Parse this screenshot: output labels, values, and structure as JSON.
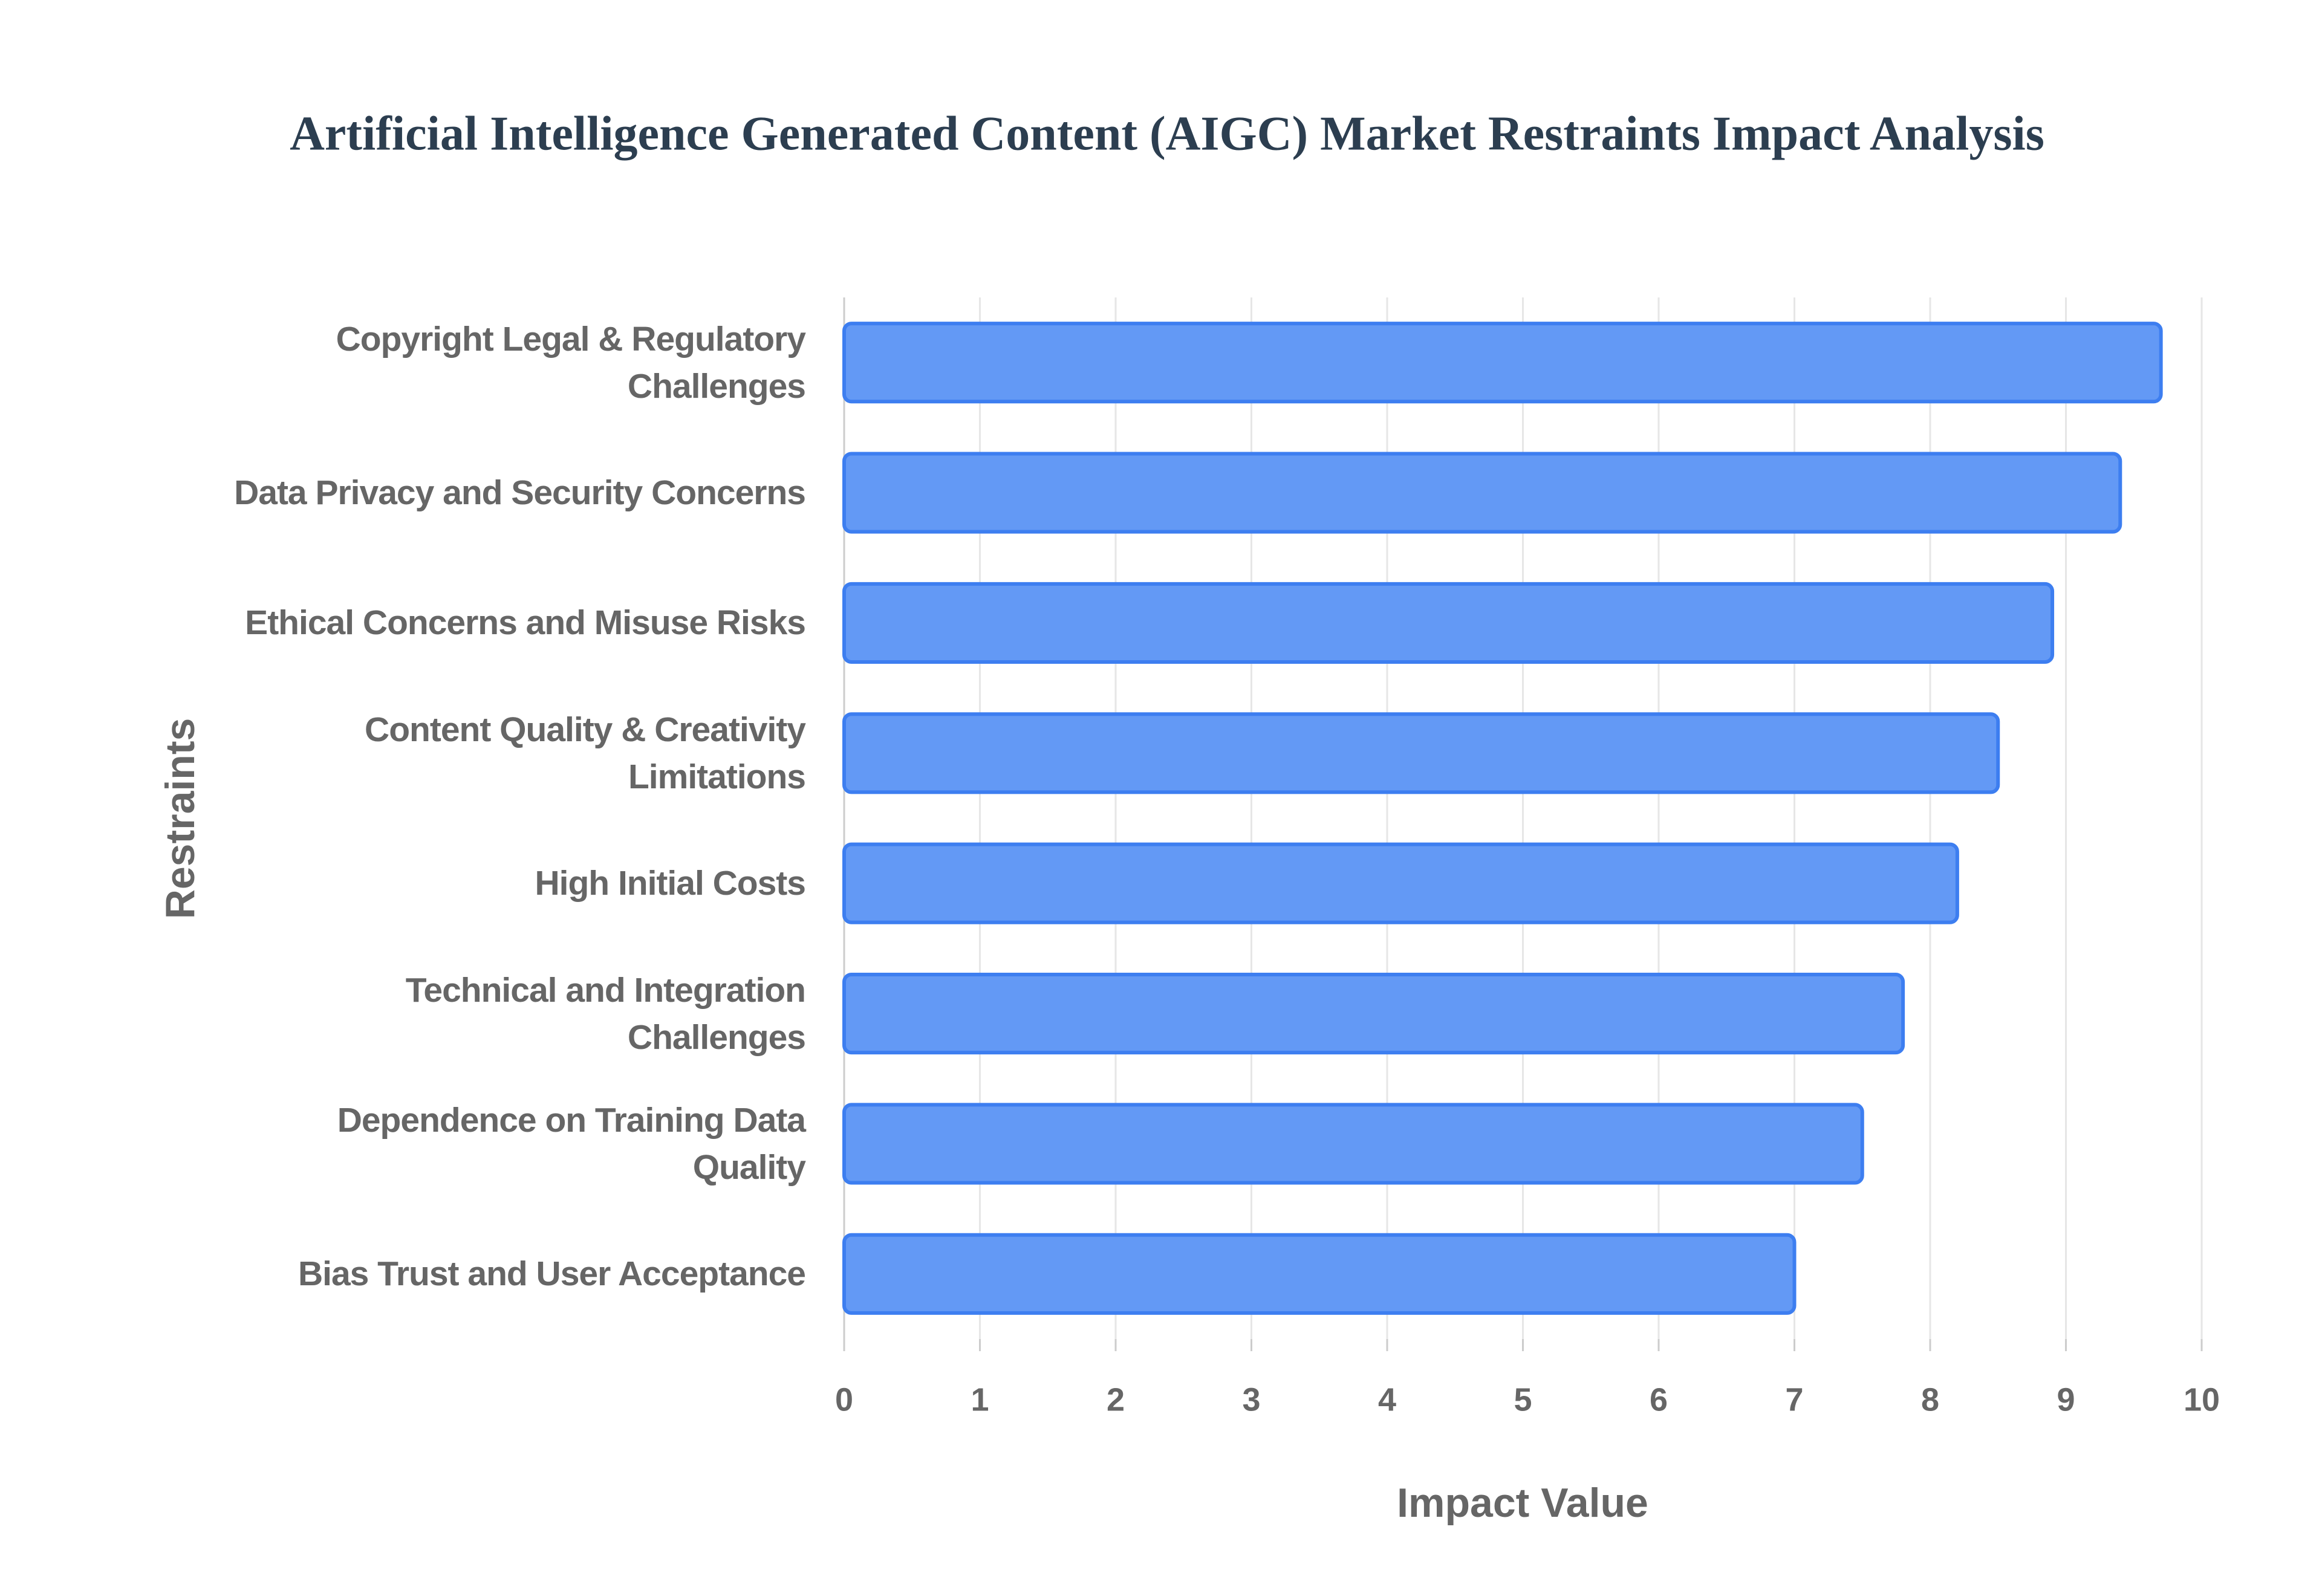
{
  "chart_data": {
    "type": "bar",
    "orientation": "horizontal",
    "title": "Artificial Intelligence Generated Content (AIGC) Market Restraints Impact Analysis",
    "x_label": "Impact Value",
    "y_label": "Restraints",
    "categories": [
      "Copyright Legal & Regulatory Challenges",
      "Data Privacy and Security Concerns",
      "Ethical Concerns and Misuse Risks",
      "Content Quality & Creativity Limitations",
      "High Initial Costs",
      "Technical and Integration Challenges",
      "Dependence on Training Data Quality",
      "Bias Trust and User Acceptance"
    ],
    "values": [
      9.7,
      9.4,
      8.9,
      8.5,
      8.2,
      7.8,
      7.5,
      7.0
    ],
    "color": "#6399f5",
    "border_color": "#3d7ef0",
    "xlim": [
      0,
      10
    ],
    "xticks": [
      0,
      1,
      2,
      3,
      4,
      5,
      6,
      7,
      8,
      9,
      10
    ],
    "grid": true
  }
}
